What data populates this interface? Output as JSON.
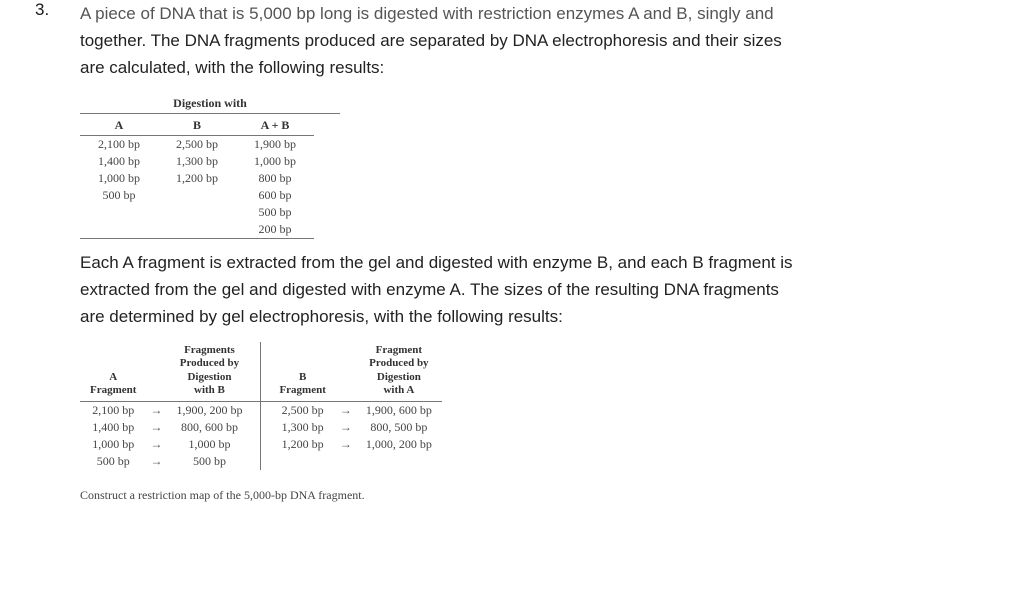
{
  "question": {
    "number": "3.",
    "line1": "A piece of DNA that is 5,000 bp long is digested with restriction enzymes A and B, singly and",
    "line2": "together. The DNA fragments produced are separated by DNA electrophoresis and their sizes",
    "line3": "are calculated, with the following results:"
  },
  "table1": {
    "caption": "Digestion with",
    "headers": [
      "A",
      "B",
      "A + B"
    ],
    "rows": [
      [
        "2,100 bp",
        "2,500 bp",
        "1,900 bp"
      ],
      [
        "1,400 bp",
        "1,300 bp",
        "1,000 bp"
      ],
      [
        "1,000 bp",
        "1,200 bp",
        "800 bp"
      ],
      [
        "500 bp",
        "",
        "600 bp"
      ],
      [
        "",
        "",
        "500 bp"
      ],
      [
        "",
        "",
        "200 bp"
      ]
    ]
  },
  "para2": {
    "line1": "Each A fragment is extracted from the gel and digested with enzyme B, and each B fragment is",
    "line2": "extracted from the gel and digested with enzyme A. The sizes of the resulting DNA fragments",
    "line3": "are determined by gel electrophoresis, with the following results:"
  },
  "table2": {
    "headers": {
      "aFrag": "A\nFragment",
      "aProd": "Fragments\nProduced by\nDigestion\nwith B",
      "bFrag": "B\nFragment",
      "bProd": "Fragment\nProduced by\nDigestion\nwith A"
    },
    "rows": [
      {
        "a": "2,100 bp",
        "ap": "1,900, 200 bp",
        "b": "2,500 bp",
        "bp": "1,900, 600 bp"
      },
      {
        "a": "1,400 bp",
        "ap": "800, 600 bp",
        "b": "1,300 bp",
        "bp": "800, 500 bp"
      },
      {
        "a": "1,000 bp",
        "ap": "1,000 bp",
        "b": "1,200 bp",
        "bp": "1,000, 200 bp"
      },
      {
        "a": "500 bp",
        "ap": "500 bp",
        "b": "",
        "bp": ""
      }
    ],
    "arrow": "→"
  },
  "footnote": "Construct a restriction map of the 5,000-bp DNA fragment."
}
